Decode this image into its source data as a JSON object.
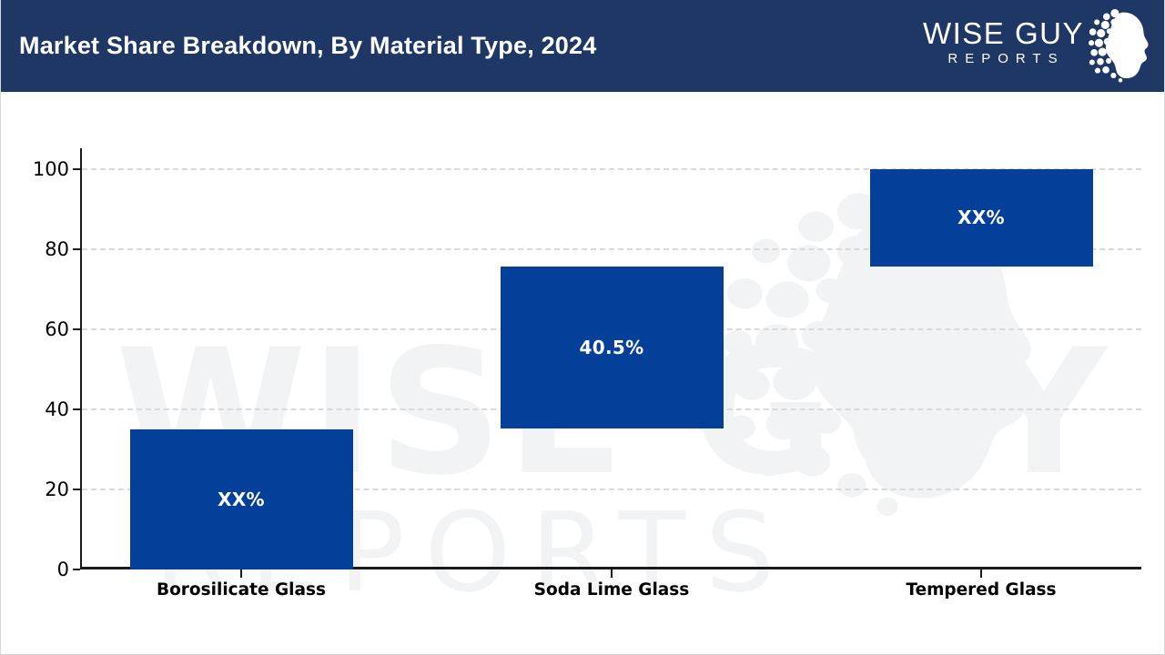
{
  "header": {
    "title": "Market Share Breakdown, By Material Type, 2024",
    "bg_color": "#1f3764",
    "logo": {
      "brand_top": "WISE GUY",
      "brand_bottom": "REPORTS"
    }
  },
  "watermark": {
    "brand_top": "WISE GUY",
    "brand_bottom": "REPORTS"
  },
  "chart_data": {
    "type": "bar",
    "variant": "waterfall",
    "title": "Market Share Breakdown, By Material Type, 2024",
    "categories": [
      "Borosilicate Glass",
      "Soda Lime Glass",
      "Tempered Glass"
    ],
    "segments": [
      {
        "category": "Borosilicate Glass",
        "from": 0,
        "to": 35,
        "label": "XX%"
      },
      {
        "category": "Soda Lime Glass",
        "from": 35,
        "to": 75.5,
        "label": "40.5%"
      },
      {
        "category": "Tempered Glass",
        "from": 75.5,
        "to": 100,
        "label": "XX%"
      }
    ],
    "ylim": [
      0,
      100
    ],
    "yticks": [
      0,
      20,
      40,
      60,
      80,
      100
    ],
    "bar_color": "#04409a",
    "grid": "horizontal-dashed",
    "legend": "none"
  }
}
